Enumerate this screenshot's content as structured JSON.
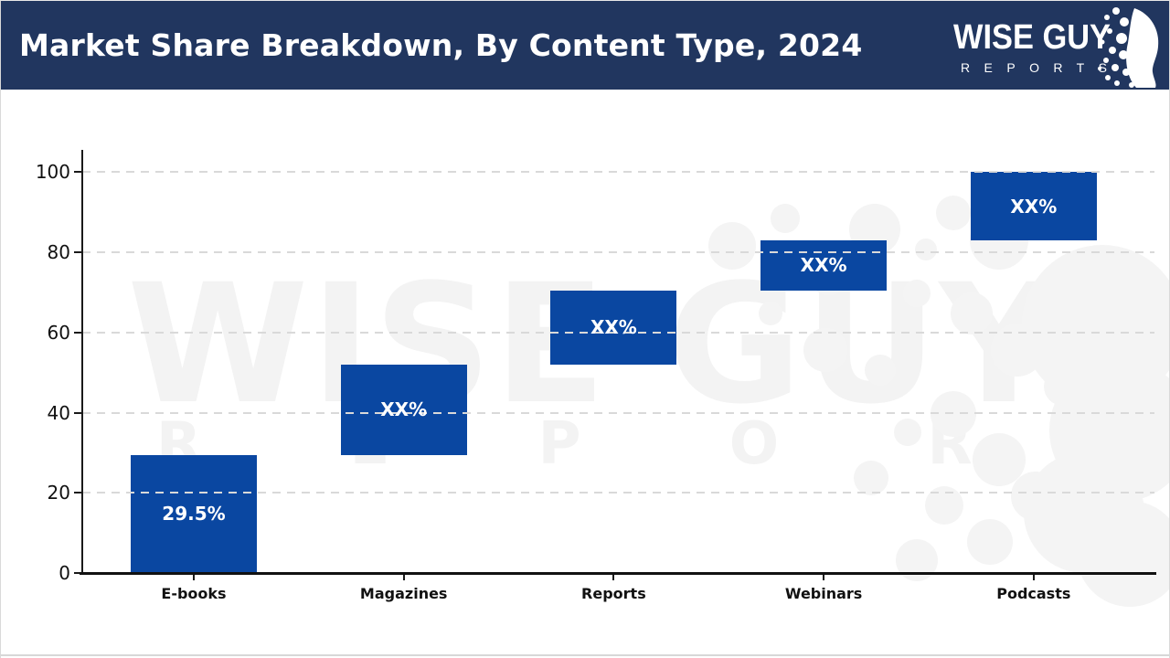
{
  "header": {
    "title": "Market Share Breakdown, By Content Type, 2024",
    "logo_line1": "WISE GUY",
    "logo_line2": "REPORTS"
  },
  "watermark": {
    "line1": "WISE GUY",
    "line2": "R E P O R T S"
  },
  "colors": {
    "header_bg": "#21365f",
    "bar_fill": "#0a47a1",
    "grid": "#d9d9d9",
    "axis": "#1a1a1a",
    "bar_label_text": "#ffffff",
    "watermark": "#f3f3f3"
  },
  "chart_data": {
    "type": "bar",
    "variant": "waterfall-floating-bars",
    "title": "Market Share Breakdown, By Content Type, 2024",
    "categories": [
      "E-books",
      "Magazines",
      "Reports",
      "Webinars",
      "Podcasts"
    ],
    "segments": [
      {
        "category": "E-books",
        "start": 0,
        "end": 29.5,
        "value": 29.5,
        "label": "29.5%"
      },
      {
        "category": "Magazines",
        "start": 29.5,
        "end": 52,
        "value": 22.5,
        "label": "XX%"
      },
      {
        "category": "Reports",
        "start": 52,
        "end": 70.5,
        "value": 18.5,
        "label": "XX%"
      },
      {
        "category": "Webinars",
        "start": 70.5,
        "end": 83,
        "value": 12.5,
        "label": "XX%"
      },
      {
        "category": "Podcasts",
        "start": 83,
        "end": 100,
        "value": 17,
        "label": "XX%"
      }
    ],
    "yticks": [
      0,
      20,
      40,
      60,
      80,
      100
    ],
    "ylim": [
      0,
      105
    ],
    "xlabel": "",
    "ylabel": "",
    "grid": "dashed-horizontal-over-bars",
    "legend": "none"
  }
}
